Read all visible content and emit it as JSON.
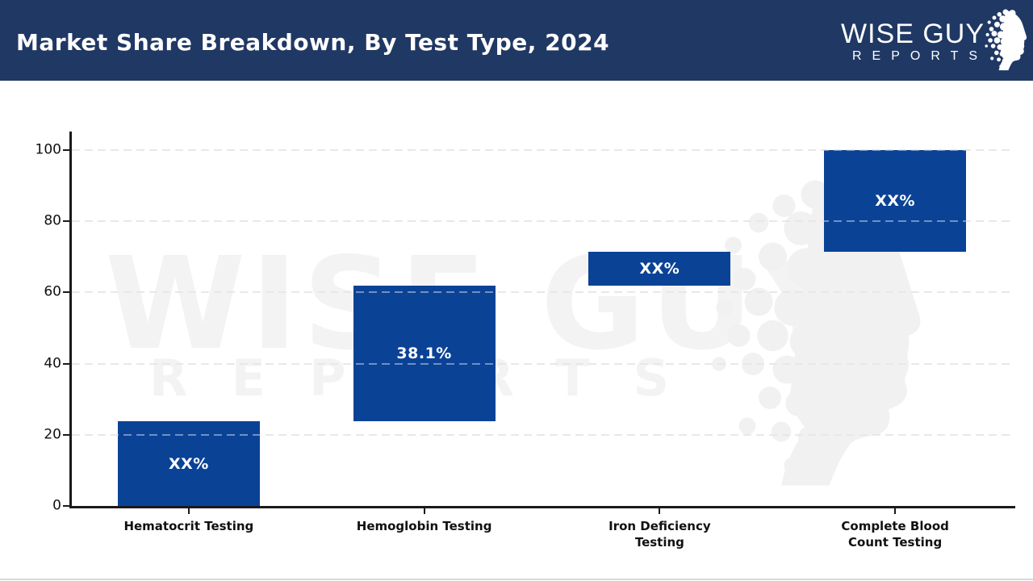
{
  "header": {
    "title": "Market Share Breakdown, By Test Type, 2024",
    "brand_line1": "WISE GUY",
    "brand_line2": "REPORTS",
    "background_color": "#203864",
    "text_color": "#ffffff"
  },
  "watermark": {
    "line1": "WISE GUY",
    "line2": "REPORTS"
  },
  "chart_data": {
    "type": "bar",
    "subtype": "floating-waterfall-segments",
    "title": "Market Share Breakdown, By Test Type, 2024",
    "xlabel": "",
    "ylabel": "",
    "ylim": [
      0,
      105
    ],
    "yticks": [
      0,
      20,
      40,
      60,
      80,
      100
    ],
    "grid": true,
    "gridline_style": "dashed",
    "legend": false,
    "bar_color": "#0a4296",
    "categories": [
      "Hematocrit Testing",
      "Hemoglobin Testing",
      "Iron Deficiency Testing",
      "Complete Blood Count Testing"
    ],
    "categories_lines": [
      [
        "Hematocrit Testing"
      ],
      [
        "Hemoglobin Testing"
      ],
      [
        "Iron Deficiency",
        "Testing"
      ],
      [
        "Complete Blood",
        "Count Testing"
      ]
    ],
    "bars": [
      {
        "category": "Hematocrit Testing",
        "start": 0,
        "end": 23.8,
        "label": "XX%"
      },
      {
        "category": "Hemoglobin Testing",
        "start": 23.8,
        "end": 61.9,
        "label": "38.1%"
      },
      {
        "category": "Iron Deficiency Testing",
        "start": 61.9,
        "end": 71.4,
        "label": "XX%"
      },
      {
        "category": "Complete Blood Count Testing",
        "start": 71.4,
        "end": 100,
        "label": "XX%"
      }
    ]
  }
}
